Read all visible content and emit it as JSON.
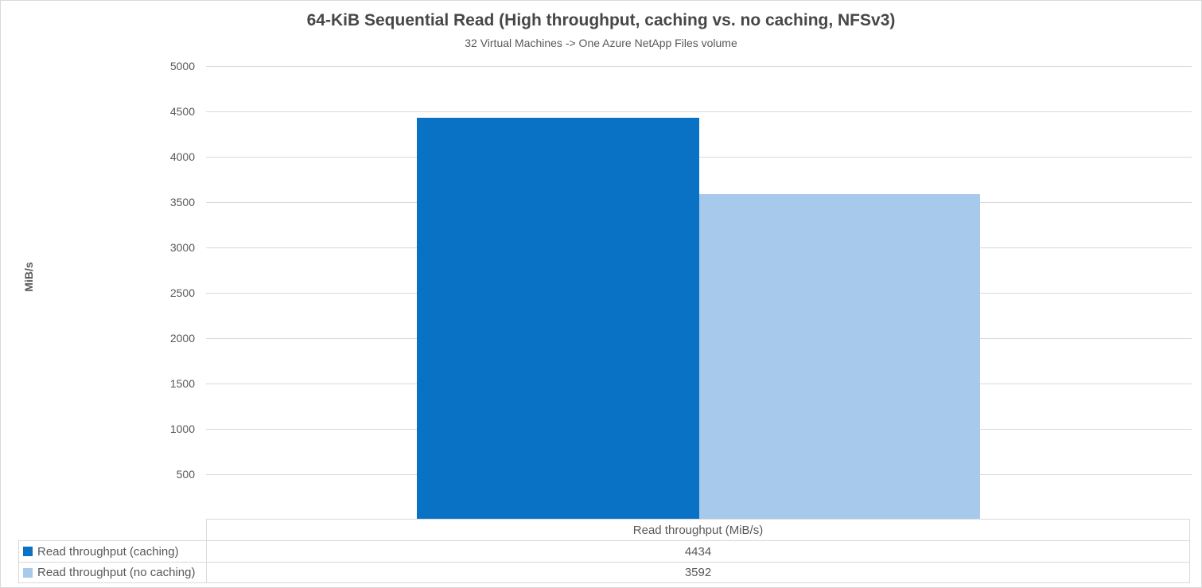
{
  "chart_data": {
    "type": "bar",
    "title": "64-KiB Sequential Read (High throughput, caching vs. no caching, NFSv3)",
    "subtitle": "32 Virtual Machines -> One Azure NetApp Files volume",
    "ylabel": "MiB/s",
    "ylim": [
      0,
      5000
    ],
    "ytick_interval": 500,
    "yticks": [
      5000,
      4500,
      4000,
      3500,
      3000,
      2500,
      2000,
      1500,
      1000,
      500
    ],
    "grid": true,
    "legend_position": "data-table-left",
    "categories": [
      "Read throughput (MiB/s)"
    ],
    "series": [
      {
        "name": "Read throughput (caching)",
        "values": [
          4434
        ],
        "color": "#0a72c5"
      },
      {
        "name": "Read throughput (no caching)",
        "values": [
          3592
        ],
        "color": "#a6c9ec"
      }
    ],
    "data_table": {
      "header": "Read throughput (MiB/s)",
      "rows": [
        {
          "label": "Read throughput (caching)",
          "value": "4434"
        },
        {
          "label": "Read throughput (no caching)",
          "value": "3592"
        }
      ]
    },
    "colors": {
      "title_text": "#474747",
      "axis_text": "#595959",
      "gridline": "#d9d9d9",
      "table_border": "#d9d9d9",
      "background": "#ffffff"
    }
  }
}
